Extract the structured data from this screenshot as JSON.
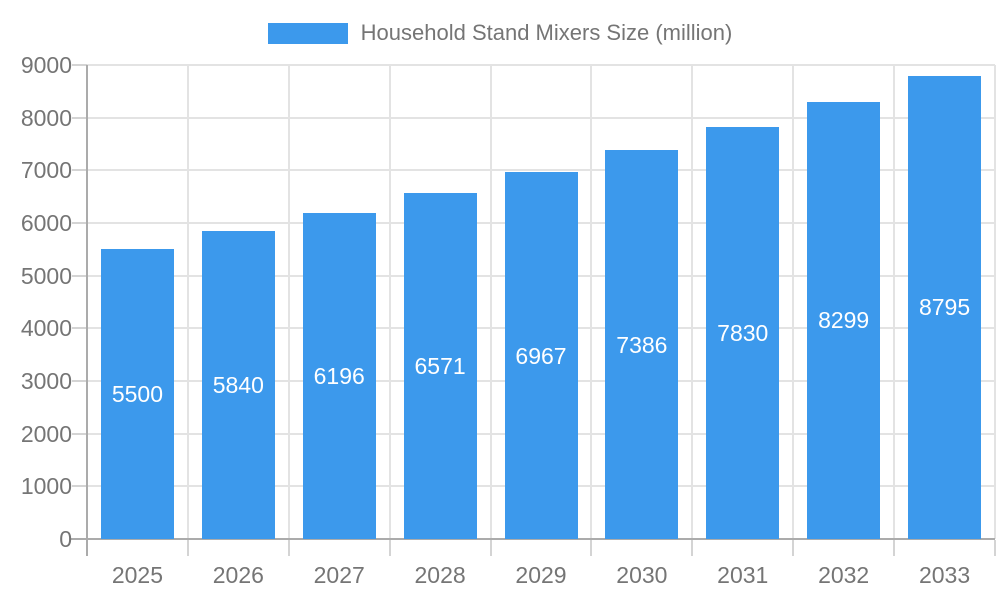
{
  "legend": {
    "label": "Household Stand Mixers Size (million)"
  },
  "colors": {
    "bar": "#3c99ec",
    "bar_label": "#ffffff",
    "text": "#757575",
    "grid": "#e3e3e3",
    "tick": "#d4d4d4",
    "axis": "#ababab",
    "background": "#ffffff"
  },
  "chart_data": {
    "type": "bar",
    "title": "Household Stand Mixers Size (million)",
    "categories": [
      "2025",
      "2026",
      "2027",
      "2028",
      "2029",
      "2030",
      "2031",
      "2032",
      "2033"
    ],
    "values": [
      5500,
      5840,
      6196,
      6571,
      6967,
      7386,
      7830,
      8299,
      8795
    ],
    "series": [
      {
        "name": "Household Stand Mixers Size (million)",
        "values": [
          5500,
          5840,
          6196,
          6571,
          6967,
          7386,
          7830,
          8299,
          8795
        ]
      }
    ],
    "xlabel": "",
    "ylabel": "",
    "ylim": [
      0,
      9000
    ],
    "ytick_step": 1000,
    "ytick_labels": [
      "0",
      "1000",
      "2000",
      "3000",
      "4000",
      "5000",
      "6000",
      "7000",
      "8000",
      "9000"
    ],
    "grid": true,
    "legend_position": "top",
    "bar_value_labels": "inside-center"
  }
}
